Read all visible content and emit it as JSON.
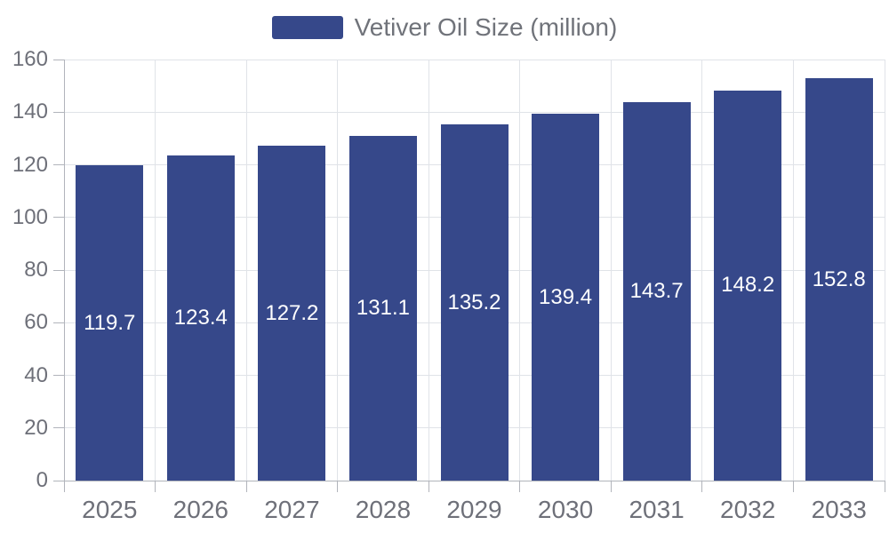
{
  "chart_data": {
    "type": "bar",
    "title": "",
    "series_name": "Vetiver Oil Size (million)",
    "categories": [
      "2025",
      "2026",
      "2027",
      "2028",
      "2029",
      "2030",
      "2031",
      "2032",
      "2033"
    ],
    "values": [
      119.7,
      123.4,
      127.2,
      131.1,
      135.2,
      139.4,
      143.7,
      148.2,
      152.8
    ],
    "value_labels": [
      "119.7",
      "123.4",
      "127.2",
      "131.1",
      "135.2",
      "139.4",
      "143.7",
      "148.2",
      "152.8"
    ],
    "xlabel": "",
    "ylabel": "",
    "ylim": [
      0,
      160
    ],
    "y_ticks": [
      0,
      20,
      40,
      60,
      80,
      100,
      120,
      140,
      160
    ],
    "grid": "on",
    "legend_position": "top-center",
    "colors": {
      "bar": "#36488a",
      "value_label": "#ffffff",
      "axis_line": "#b1b4bb",
      "grid_line": "#e0e3e8",
      "tick_label": "#6e7079",
      "legend_text": "#70737a",
      "background": "#ffffff"
    }
  }
}
